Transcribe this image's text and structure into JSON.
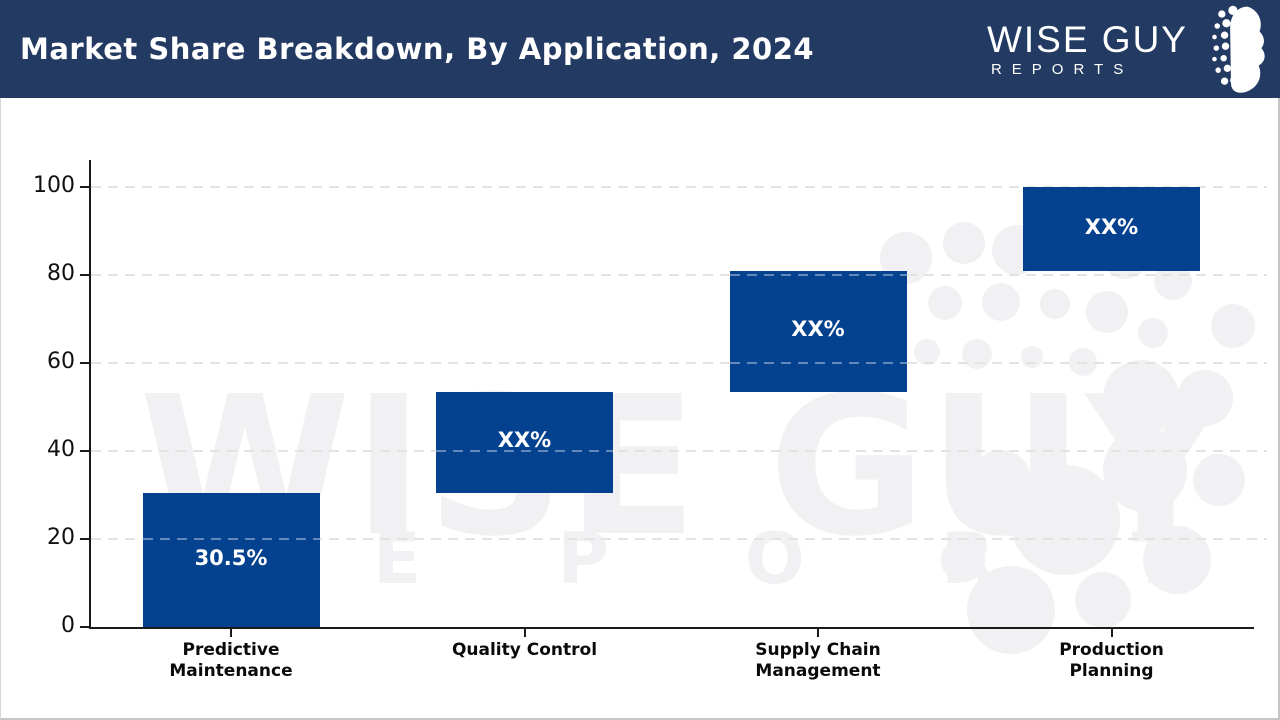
{
  "header": {
    "title": "Market Share Breakdown, By Application, 2024",
    "logo": {
      "line1": "WISE GUY",
      "line2": "REPORTS"
    }
  },
  "watermark": {
    "line1": "WISE GUY",
    "line2": "R E P O R T S"
  },
  "colors": {
    "header_bg": "#233a63",
    "bar": "#04418f",
    "grid": "#e3e3e3",
    "axis": "#1a1a1a",
    "watermark": "#f1f1f3",
    "bar_label_text": "#ffffff"
  },
  "chart_data": {
    "type": "bar",
    "subtype": "waterfall",
    "title": "Market Share Breakdown, By Application, 2024",
    "categories": [
      "Predictive Maintenance",
      "Quality Control",
      "Supply Chain Management",
      "Production Planning"
    ],
    "category_lines": [
      [
        "Predictive",
        "Maintenance"
      ],
      [
        "Quality Control"
      ],
      [
        "Supply Chain",
        "Management"
      ],
      [
        "Production",
        "Planning"
      ]
    ],
    "series": [
      {
        "name": "Market Share",
        "bar_start": [
          0,
          30.5,
          53.5,
          81
        ],
        "bar_end": [
          30.5,
          53.5,
          81,
          100
        ],
        "bar_labels": [
          "30.5%",
          "XX%",
          "XX%",
          "XX%"
        ]
      }
    ],
    "yticks": [
      0,
      20,
      40,
      60,
      80,
      100
    ],
    "ylim": [
      0,
      105
    ],
    "grid": "dashed-horizontal",
    "legend": "none",
    "bar_color": "#04418f"
  }
}
